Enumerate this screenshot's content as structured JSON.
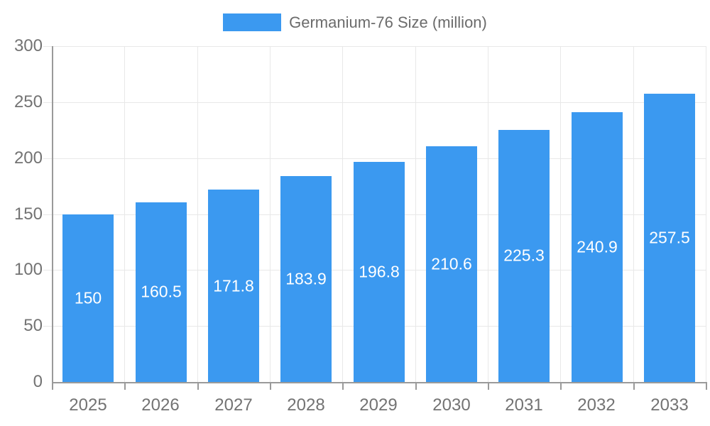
{
  "chart_data": {
    "type": "bar",
    "title": "",
    "legend": "Germanium-76 Size (million)",
    "legend_position": "top",
    "categories": [
      "2025",
      "2026",
      "2027",
      "2028",
      "2029",
      "2030",
      "2031",
      "2032",
      "2033"
    ],
    "series": [
      {
        "name": "Germanium-76 Size (million)",
        "values": [
          150,
          160.5,
          171.8,
          183.9,
          196.8,
          210.6,
          225.3,
          240.9,
          257.5
        ]
      }
    ],
    "value_labels": [
      "150",
      "160.5",
      "171.8",
      "183.9",
      "196.8",
      "210.6",
      "225.3",
      "240.9",
      "257.5"
    ],
    "value_label_placement": "inside-center",
    "xlabel": "",
    "ylabel": "",
    "ylim": [
      0,
      300
    ],
    "yticks": [
      0,
      50,
      100,
      150,
      200,
      250,
      300
    ],
    "ytick_labels": [
      "0",
      "50",
      "100",
      "150",
      "200",
      "250",
      "300"
    ],
    "grid": true,
    "colors": {
      "bar": "#3B99F0",
      "grid": "#e8e8e8",
      "axis": "#9a9a9a",
      "tick_text": "#737373",
      "legend_text": "#6b6b6b",
      "value_text": "#ffffff",
      "background": "#ffffff"
    }
  }
}
